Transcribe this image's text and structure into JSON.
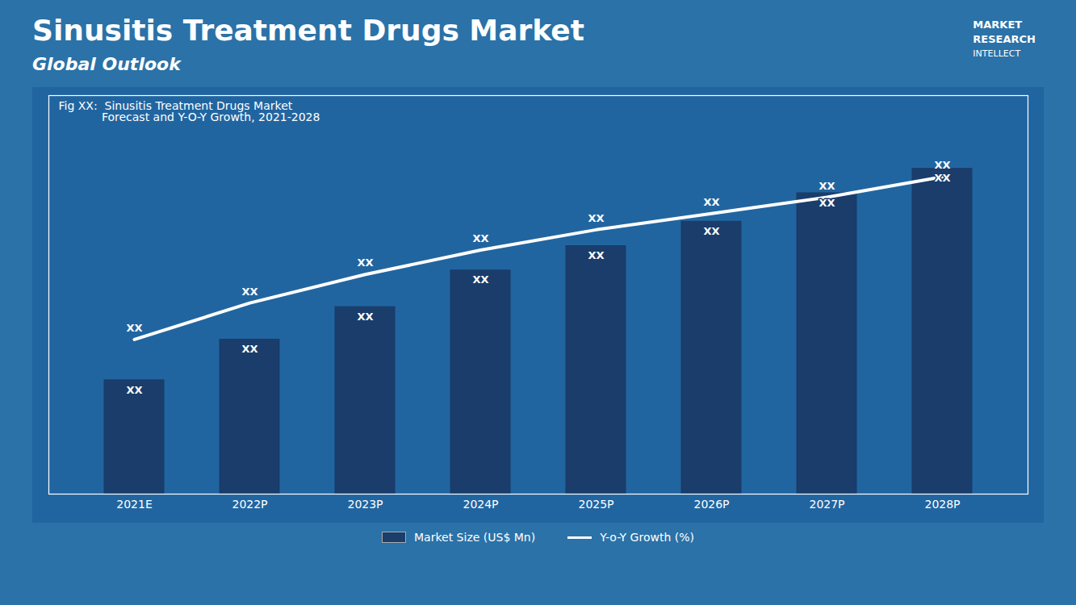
{
  "chart_data": {
    "type": "bar",
    "title": "Sinusitis Treatment Drugs Market",
    "subtitle": "Global Outlook",
    "annotations": [
      "Fig XX:  Sinusitis Treatment Drugs Market",
      "            Forecast and Y-O-Y Growth, 2021-2028",
      "MARKET",
      "RESEARCH",
      "INTELLECT"
    ],
    "categories": [
      "2021E",
      "2022P",
      "2023P",
      "2024P",
      "2025P",
      "2026P",
      "2027P",
      "2028P"
    ],
    "series": [
      {
        "name": "Market Size (US$ Mn)",
        "type": "bar",
        "color": "#1a3d6b",
        "values": [
          0.28,
          0.38,
          0.46,
          0.55,
          0.61,
          0.67,
          0.74,
          0.8
        ],
        "value_labels": [
          "XX",
          "XX",
          "XX",
          "XX",
          "XX",
          "XX",
          "XX",
          "XX"
        ]
      },
      {
        "name": "Y-o-Y Growth (%)",
        "type": "line",
        "color": "#ffffff",
        "values": [
          0.38,
          0.47,
          0.54,
          0.6,
          0.65,
          0.69,
          0.73,
          0.78
        ],
        "value_labels": [
          "XX",
          "XX",
          "XX",
          "XX",
          "XX",
          "XX",
          "XX",
          "XX"
        ]
      }
    ],
    "ylim": [
      0,
      0.98
    ],
    "grid": false,
    "legend": "lower center",
    "data_labels": true,
    "tick_labels": "x"
  }
}
